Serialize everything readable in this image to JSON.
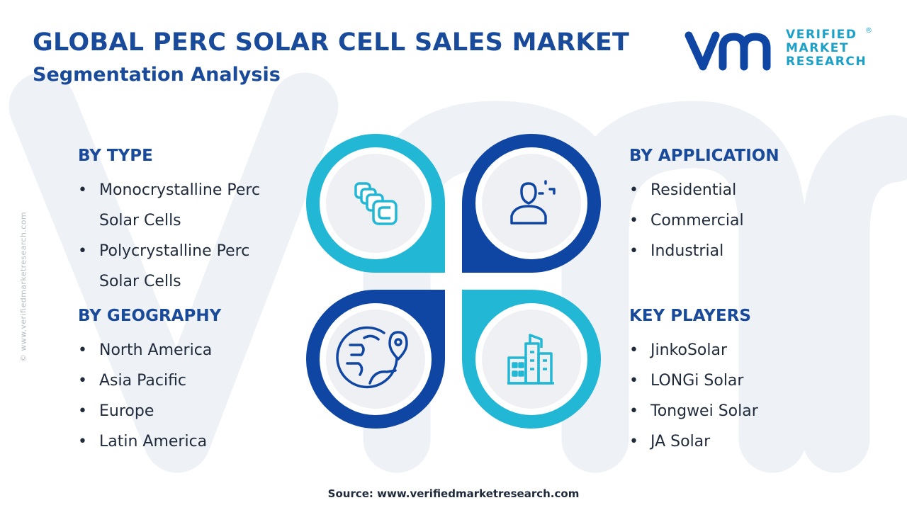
{
  "header": {
    "title": "GLOBAL PERC SOLAR CELL SALES MARKET",
    "subtitle": "Segmentation Analysis"
  },
  "logo": {
    "line1": "VERIFIED",
    "line2": "MARKET",
    "line3": "RESEARCH",
    "registered": "®"
  },
  "side_watermark": "© www.verifiedmarketresearch.com",
  "segments": {
    "type": {
      "heading": "BY TYPE",
      "items": [
        "Monocrystalline Perc",
        "Solar Cells",
        "Polycrystalline Perc",
        "Solar Cells"
      ]
    },
    "geography": {
      "heading": "BY GEOGRAPHY",
      "items": [
        "North America",
        "Asia Pacific",
        "Europe",
        "Latin America"
      ]
    },
    "application": {
      "heading": "BY APPLICATION",
      "items": [
        "Residential",
        "Commercial",
        "Industrial"
      ]
    },
    "key_players": {
      "heading": "KEY PLAYERS",
      "items": [
        "JinkoSolar",
        "LONGi Solar",
        "Tongwei Solar",
        "JA Solar"
      ]
    }
  },
  "hub": {
    "quadrants": [
      {
        "id": "type",
        "icon": "stacked-cells-icon",
        "ring_color": "#22b7d4"
      },
      {
        "id": "application",
        "icon": "user-target-icon",
        "ring_color": "#1046a3"
      },
      {
        "id": "geography",
        "icon": "globe-pin-icon",
        "ring_color": "#1046a3"
      },
      {
        "id": "key_players",
        "icon": "buildings-icon",
        "ring_color": "#22b7d4"
      }
    ]
  },
  "source": {
    "label": "Source:",
    "url": "www.verifiedmarketresearch.com"
  },
  "colors": {
    "navy": "#1a4a9a",
    "ring_dark": "#1046a3",
    "ring_light": "#22b7d4",
    "inner_circle": "#eef0f3"
  }
}
